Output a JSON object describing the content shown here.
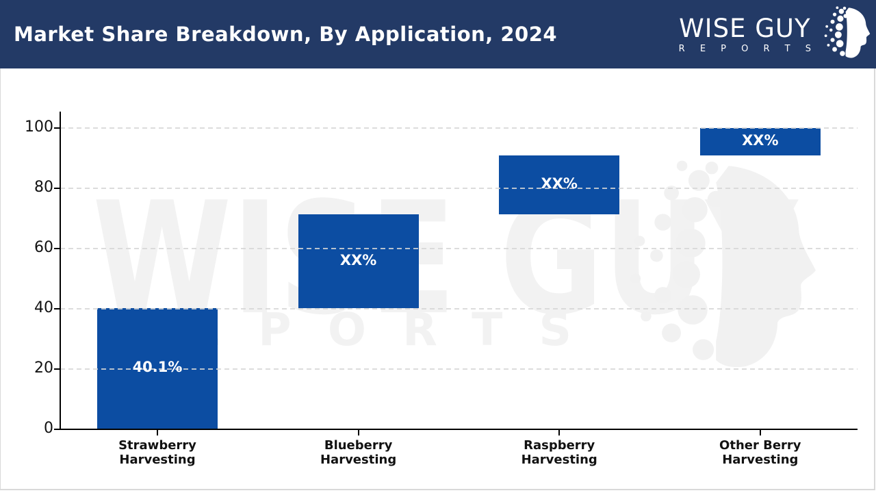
{
  "header": {
    "title": "Market Share Breakdown, By Application, 2024",
    "logo_line1": "WISE GUY",
    "logo_line2": "R E P O R T S"
  },
  "watermark": {
    "line1": "WISE GUY",
    "line2": "REPORTS"
  },
  "chart_data": {
    "type": "bar",
    "subtype": "waterfall",
    "title": "Market Share Breakdown, By Application, 2024",
    "xlabel": "",
    "ylabel": "",
    "ylim": [
      0,
      105
    ],
    "yticks": [
      0,
      20,
      40,
      60,
      80,
      100
    ],
    "grid": "dashed horizontal",
    "legend": false,
    "bar_color": "#0c4da2",
    "label_color": "#ffffff",
    "axis_color": "#000000",
    "grid_color": "#d9d9d9",
    "categories": [
      [
        "Strawberry",
        "Harvesting"
      ],
      [
        "Blueberry",
        "Harvesting"
      ],
      [
        "Raspberry",
        "Harvesting"
      ],
      [
        "Other Berry",
        "Harvesting"
      ]
    ],
    "segments": [
      {
        "category": "Strawberry Harvesting",
        "start": 0,
        "end": 40.1,
        "label": "40.1%"
      },
      {
        "category": "Blueberry Harvesting",
        "start": 40.1,
        "end": 71.4,
        "label": "XX%"
      },
      {
        "category": "Raspberry Harvesting",
        "start": 71.4,
        "end": 90.9,
        "label": "XX%"
      },
      {
        "category": "Other Berry Harvesting",
        "start": 90.9,
        "end": 100,
        "label": "XX%"
      }
    ]
  }
}
